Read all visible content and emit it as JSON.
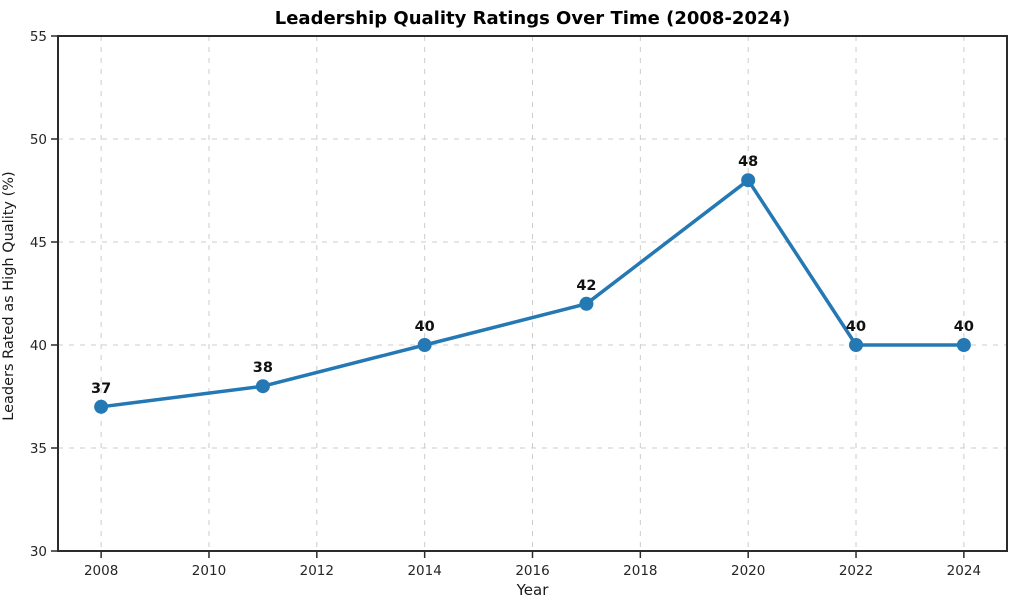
{
  "chart_data": {
    "type": "line",
    "title": "Leadership Quality Ratings Over Time (2008-2024)",
    "xlabel": "Year",
    "ylabel": "Leaders Rated as High Quality (%)",
    "x": [
      2008,
      2011,
      2014,
      2017,
      2020,
      2022,
      2024
    ],
    "values": [
      37,
      38,
      40,
      42,
      48,
      40,
      40
    ],
    "point_labels": [
      "37",
      "38",
      "40",
      "42",
      "48",
      "40",
      "40"
    ],
    "xticks": [
      2008,
      2010,
      2012,
      2014,
      2016,
      2018,
      2020,
      2022,
      2024
    ],
    "yticks": [
      30,
      35,
      40,
      45,
      50,
      55
    ],
    "xlim": [
      2007.2,
      2024.8
    ],
    "ylim": [
      30,
      55
    ],
    "grid": "both-dashed",
    "legend": "none",
    "line_color": "#2478b4",
    "marker": "circle",
    "grid_color": "#cccccc",
    "frame_color": "#2b2b2b",
    "tick_color": "#262626",
    "label_color": "#1a1a1a",
    "background_color": "#ffffff"
  }
}
